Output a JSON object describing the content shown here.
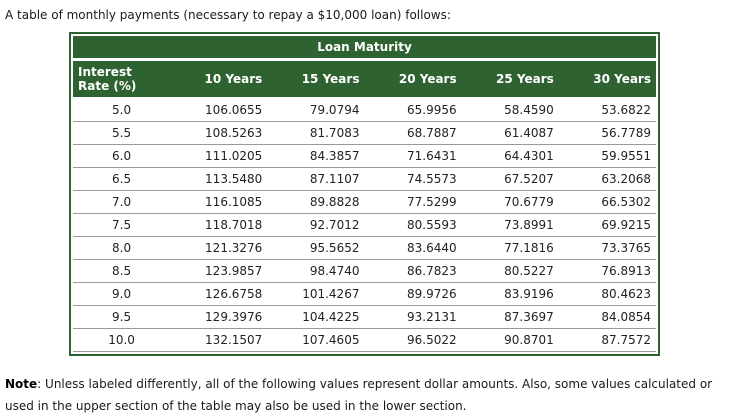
{
  "page": {
    "intro": "A table of monthly payments (necessary to repay a $10,000 loan) follows:",
    "note_label": "Note",
    "note_text": ": Unless labeled differently, all of the following values represent dollar amounts. Also, some values calculated or used in the upper section of the table may also be used in the lower section."
  },
  "table": {
    "title": "Loan Maturity",
    "columns": [
      "Interest Rate (%)",
      "10 Years",
      "15 Years",
      "20 Years",
      "25 Years",
      "30 Years"
    ],
    "rows": [
      [
        "5.0",
        "106.0655",
        "79.0794",
        "65.9956",
        "58.4590",
        "53.6822"
      ],
      [
        "5.5",
        "108.5263",
        "81.7083",
        "68.7887",
        "61.4087",
        "56.7789"
      ],
      [
        "6.0",
        "111.0205",
        "84.3857",
        "71.6431",
        "64.4301",
        "59.9551"
      ],
      [
        "6.5",
        "113.5480",
        "87.1107",
        "74.5573",
        "67.5207",
        "63.2068"
      ],
      [
        "7.0",
        "116.1085",
        "89.8828",
        "77.5299",
        "70.6779",
        "66.5302"
      ],
      [
        "7.5",
        "118.7018",
        "92.7012",
        "80.5593",
        "73.8991",
        "69.9215"
      ],
      [
        "8.0",
        "121.3276",
        "95.5652",
        "83.6440",
        "77.1816",
        "73.3765"
      ],
      [
        "8.5",
        "123.9857",
        "98.4740",
        "86.7823",
        "80.5227",
        "76.8913"
      ],
      [
        "9.0",
        "126.6758",
        "101.4267",
        "89.9726",
        "83.9196",
        "80.4623"
      ],
      [
        "9.5",
        "129.3976",
        "104.4225",
        "93.2131",
        "87.3697",
        "84.0854"
      ],
      [
        "10.0",
        "132.1507",
        "107.4605",
        "96.5022",
        "90.8701",
        "87.7572"
      ]
    ],
    "colors": {
      "header_bg": "#2E6231",
      "border": "#2E6231",
      "row_divider": "#999999",
      "header_text": "#FFFFFF",
      "body_text": "#1A1A1A"
    }
  }
}
